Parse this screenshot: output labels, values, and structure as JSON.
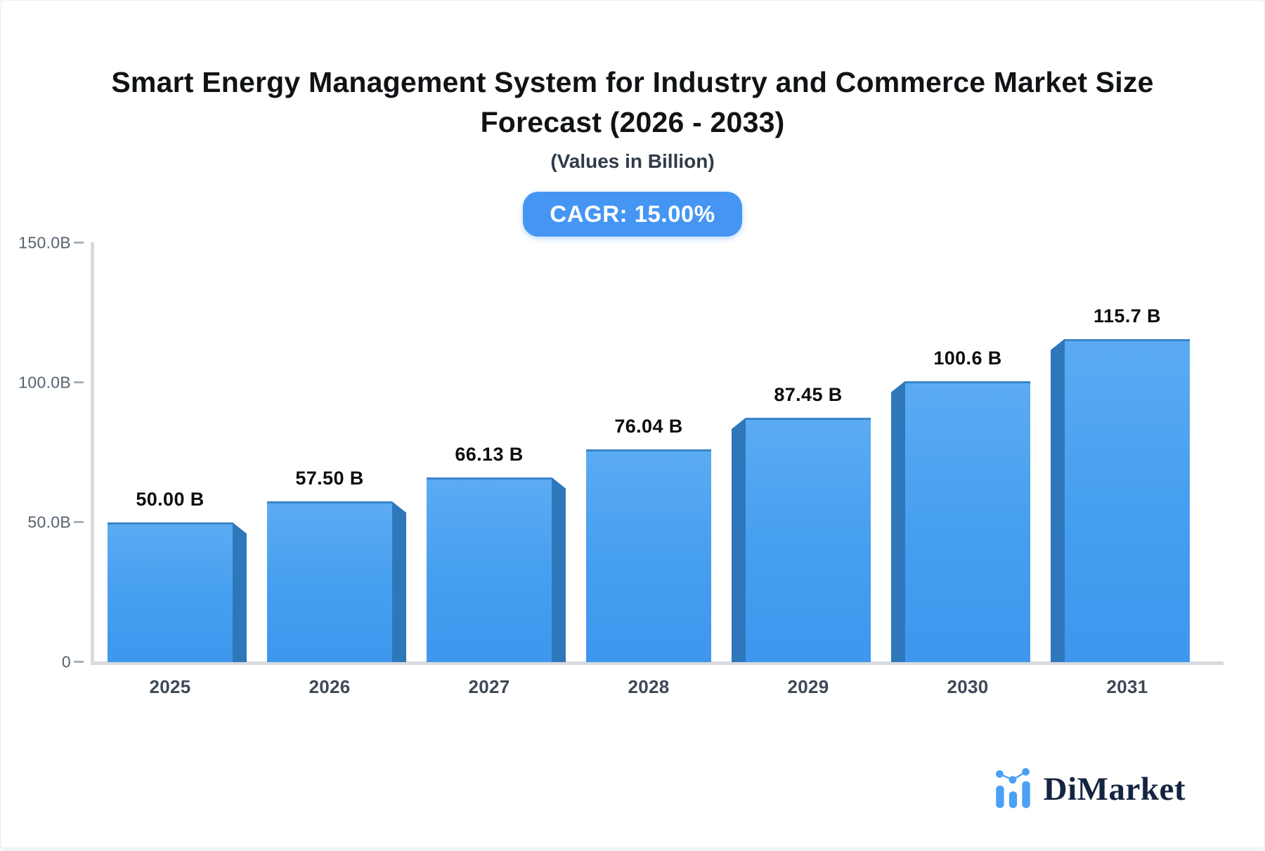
{
  "header": {
    "title_lines": [
      "Smart Energy Management System for Industry and Commerce Market Size",
      "Forecast (2026 - 2033)"
    ],
    "subtitle": "(Values in Billion)",
    "cagr_badge": "CAGR: 15.00%"
  },
  "chart_data": {
    "type": "bar",
    "title": "Smart Energy Management System for Industry and Commerce Market Size Forecast (2026 - 2033)",
    "subtitle": "(Values in Billion)",
    "cagr_percent": 15.0,
    "unit": "Billion",
    "categories": [
      "2025",
      "2026",
      "2027",
      "2028",
      "2029",
      "2030",
      "2031"
    ],
    "values": [
      50.0,
      57.5,
      66.13,
      76.04,
      87.45,
      100.6,
      115.7
    ],
    "bar_labels": [
      "50.00 B",
      "57.50 B",
      "66.13 B",
      "76.04 B",
      "87.45 B",
      "100.6 B",
      "115.7 B"
    ],
    "xlabel": "",
    "ylabel": "",
    "ylim": [
      0,
      150
    ],
    "yticks": {
      "values": [
        0,
        50,
        100,
        150
      ],
      "labels": [
        "0",
        "50.0B",
        "100.0B",
        "150.0B"
      ]
    },
    "grid": false,
    "legend": null,
    "bar_style": "3d-blue"
  },
  "logo": {
    "text": "DiMarket",
    "icon": "dimarket-bars-icon"
  },
  "colors": {
    "accent": "#4596f2",
    "bar_face": "#459ef0",
    "bar_face_top": "#5babf2",
    "bar_side": "#2f77bb",
    "bar_top_line": "#3a84c8",
    "axis": "#d8dade",
    "logo_text": "#152440",
    "logo_accent": "#4aa0f6"
  }
}
